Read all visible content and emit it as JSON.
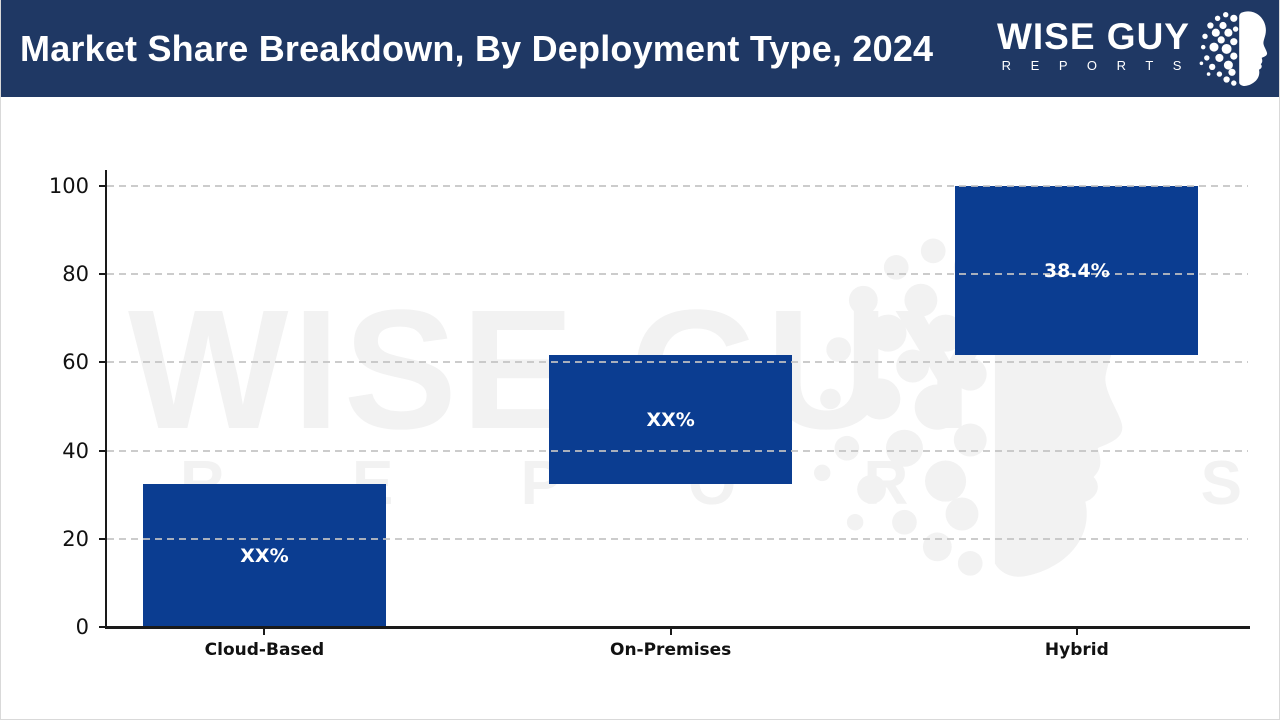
{
  "header": {
    "title": "Market Share Breakdown, By Deployment Type, 2024",
    "bg_color": "#1f3864",
    "logo": {
      "brand": "WISE GUY",
      "sub": "R E P O R T S"
    }
  },
  "watermark": {
    "brand": "WISE GUY",
    "sub": "R E P O R T S"
  },
  "chart_data": {
    "type": "bar",
    "subtype": "floating-segment waterfall breakdown",
    "title": "Market Share Breakdown, By Deployment Type, 2024",
    "categories": [
      "Cloud-Based",
      "On-Premises",
      "Hybrid"
    ],
    "series": [
      {
        "name": "Market share (%)",
        "segments": [
          {
            "category": "Cloud-Based",
            "start": 0,
            "end": 32.4,
            "label": "XX%"
          },
          {
            "category": "On-Premises",
            "start": 32.4,
            "end": 61.6,
            "label": "XX%"
          },
          {
            "category": "Hybrid",
            "start": 61.6,
            "end": 100,
            "label": "38.4%"
          }
        ]
      }
    ],
    "y_ticks": [
      0,
      20,
      40,
      60,
      80,
      100
    ],
    "ylim": [
      0,
      103.6
    ],
    "xlabel": "",
    "ylabel": "",
    "grid": "horizontal dashed, drawn over bars",
    "legend": "none",
    "bar_color": "#0b3d91",
    "bar_label_color": "#ffffff",
    "axis_color": "#1a1a1a",
    "grid_color": "#c3c3c3",
    "bar_centers_pct": [
      13.8,
      49.4,
      85.0
    ],
    "bar_width_pct": 21.3
  }
}
